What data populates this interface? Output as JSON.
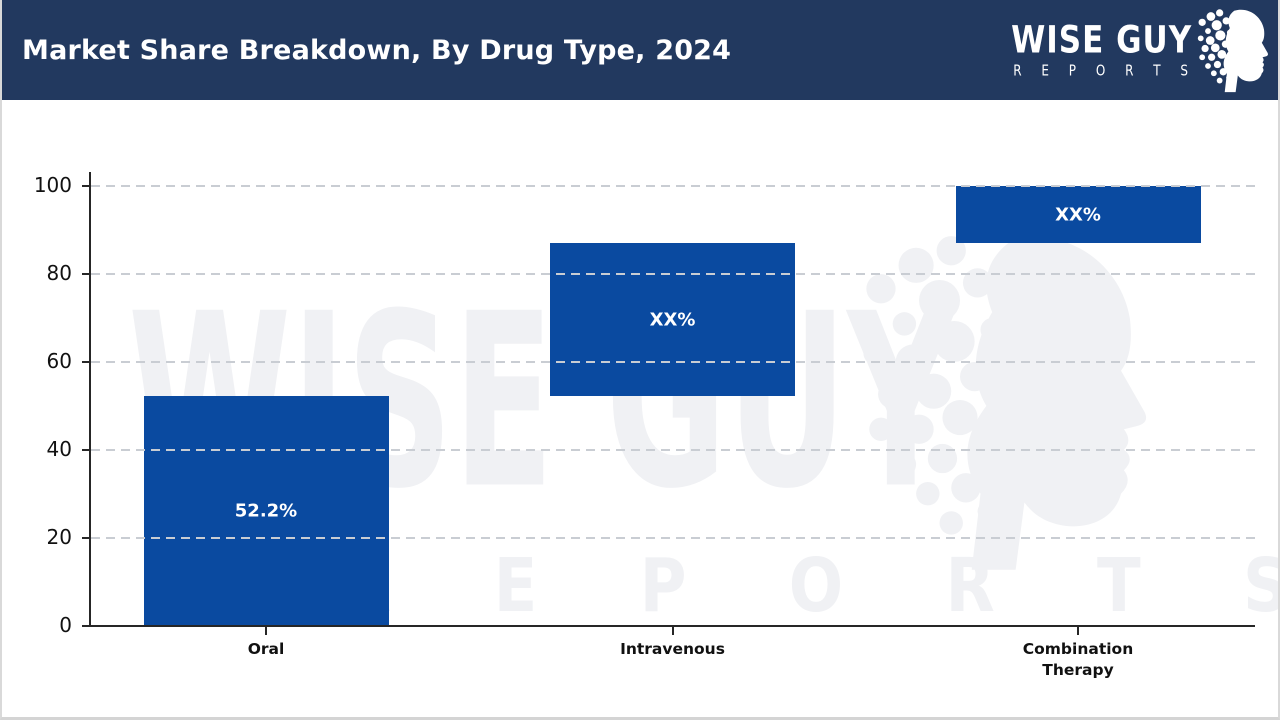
{
  "header": {
    "title": "Market Share Breakdown, By Drug Type, 2024",
    "logo": {
      "line1": "WISE GUY",
      "line2": "R E P O R T S"
    }
  },
  "watermark": {
    "line1": "WISE GUY",
    "line2": "R E P O R T S"
  },
  "colors": {
    "header_bg": "#22395f",
    "bar_fill": "#0a4aa0",
    "grid_line": "#c9cdd3",
    "axis_line": "#262626",
    "watermark": "#f0f1f4",
    "title_text": "#ffffff",
    "tick_text": "#111111"
  },
  "chart_data": {
    "type": "bar",
    "subtype": "stacked-waterfall-segments",
    "title": "Market Share Breakdown, By Drug Type, 2024",
    "categories": [
      "Oral",
      "Intravenous",
      "Combination Therapy"
    ],
    "bars": [
      {
        "category": "Oral",
        "start": 0,
        "end": 52.2,
        "value": 52.2,
        "label": "52.2%"
      },
      {
        "category": "Intravenous",
        "start": 52.2,
        "end": 87.0,
        "value": 34.8,
        "label": "XX%"
      },
      {
        "category": "Combination Therapy",
        "start": 87.0,
        "end": 100,
        "value": 13.0,
        "label": "XX%"
      }
    ],
    "ylim": [
      0,
      100
    ],
    "yticks": [
      0,
      20,
      40,
      60,
      80,
      100
    ],
    "grid": "dashed-horizontal",
    "legend": "none",
    "xlabel": "",
    "ylabel": ""
  }
}
